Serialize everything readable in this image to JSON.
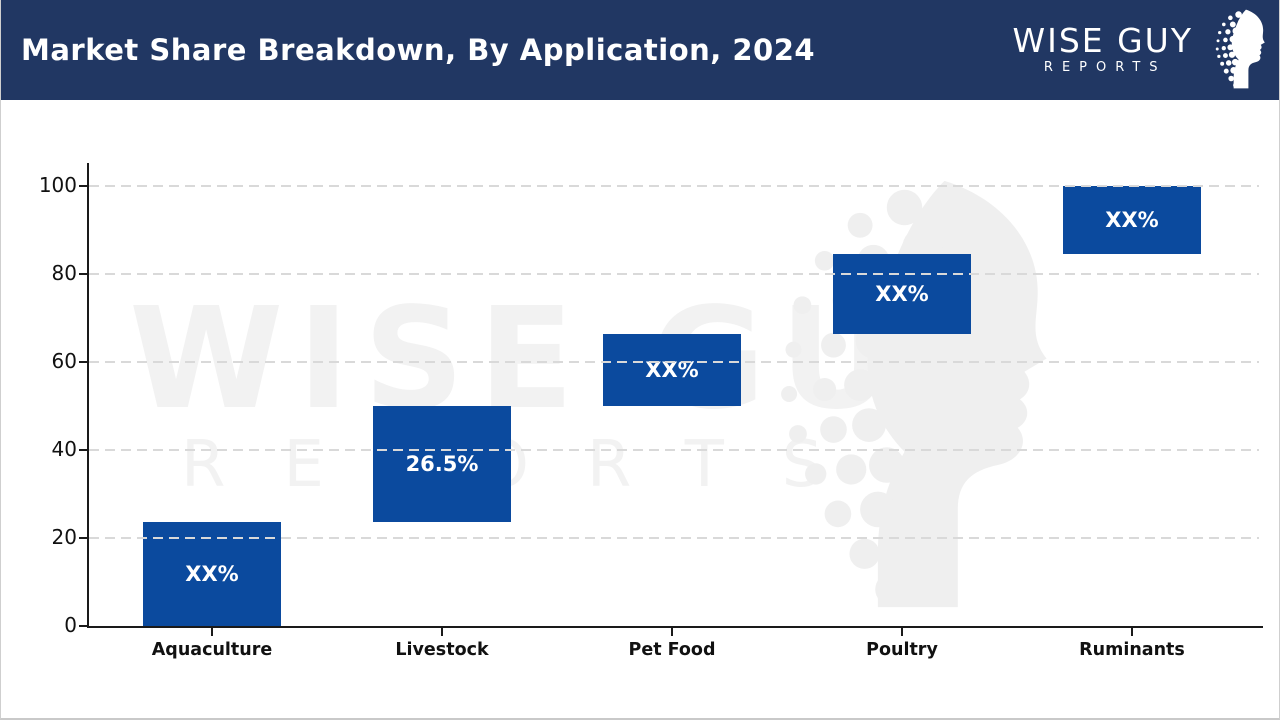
{
  "header": {
    "title": "Market Share Breakdown, By Application, 2024",
    "background_color": "#213763",
    "logo": {
      "primary": "WISE GUY",
      "secondary": "REPORTS",
      "icon": "dotted-head-profile-icon"
    }
  },
  "watermark": {
    "line1": "WISE GUY",
    "line2": "REPORTS"
  },
  "chart_data": {
    "type": "bar",
    "subtype": "waterfall",
    "title": "Market Share Breakdown, By Application, 2024",
    "categories": [
      "Aquaculture",
      "Livestock",
      "Pet Food",
      "Poultry",
      "Ruminants"
    ],
    "bars": [
      {
        "category": "Aquaculture",
        "start": 0,
        "end": 23.6,
        "value_label": "XX%"
      },
      {
        "category": "Livestock",
        "start": 23.6,
        "end": 50.1,
        "value_label": "26.5%"
      },
      {
        "category": "Pet Food",
        "start": 50.1,
        "end": 66.4,
        "value_label": "XX%"
      },
      {
        "category": "Poultry",
        "start": 66.4,
        "end": 84.5,
        "value_label": "XX%"
      },
      {
        "category": "Ruminants",
        "start": 84.5,
        "end": 100,
        "value_label": "XX%"
      }
    ],
    "xlabel": "",
    "ylabel": "",
    "ylim": [
      0,
      100
    ],
    "yticks": [
      0,
      20,
      40,
      60,
      80,
      100
    ],
    "grid": "dashed-horizontal",
    "legend": "none",
    "bar_color": "#0b4a9e",
    "bar_label_color": "#ffffff",
    "gridline_color": "#d9d9d9",
    "axis_color": "#1a1a1a"
  }
}
